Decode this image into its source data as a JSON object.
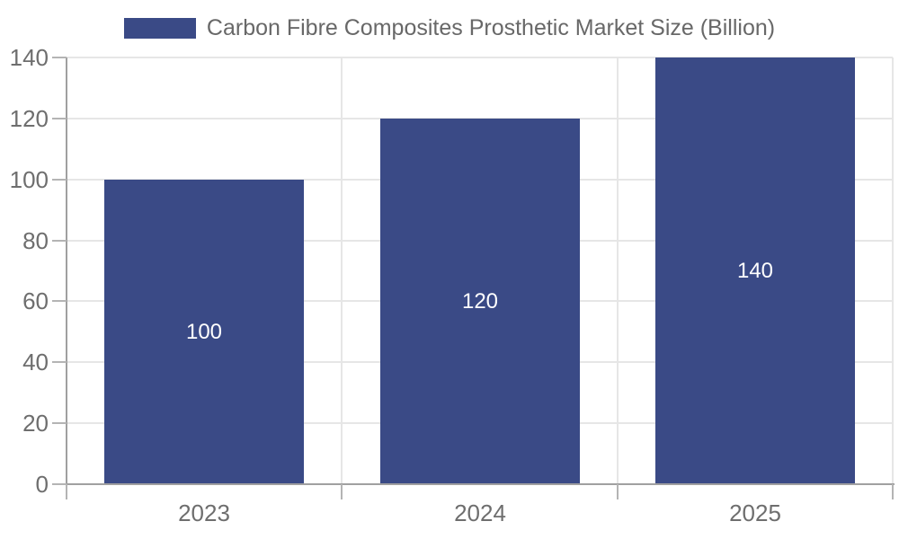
{
  "chart_data": {
    "type": "bar",
    "legend_label": "Carbon Fibre Composites Prosthetic Market Size (Billion)",
    "categories": [
      "2023",
      "2024",
      "2025"
    ],
    "values": [
      100,
      120,
      140
    ],
    "bar_value_labels": [
      "100",
      "120",
      "140"
    ],
    "ylim": [
      0,
      140
    ],
    "yticks": [
      0,
      20,
      40,
      60,
      80,
      100,
      120,
      140
    ],
    "grid": true,
    "legend_position": "top-center",
    "colors": {
      "bar_fill": "#3a4a86",
      "bar_value_label": "#ffffff",
      "axis_tick_label": "#6e6e6e",
      "legend_text": "#686868",
      "gridline": "#e6e6e6",
      "axis_line": "#a0a0a0",
      "tick_mark": "#b4b4b4",
      "background": "#ffffff"
    }
  }
}
